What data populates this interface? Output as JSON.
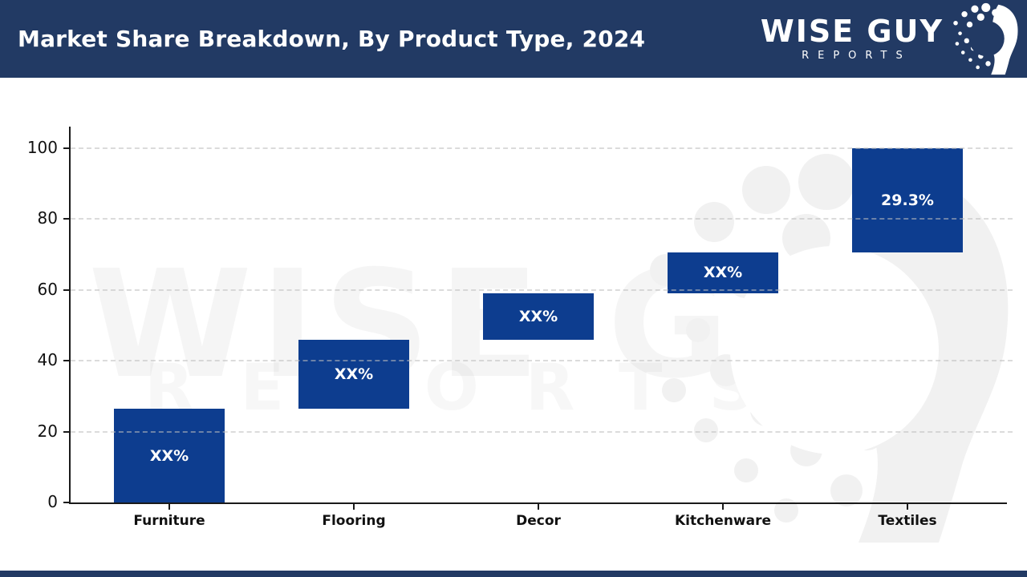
{
  "header": {
    "title": "Market Share Breakdown, By Product Type, 2024",
    "bg_color": "#223a64",
    "logo": {
      "line1": "WISE GUY",
      "line2": "REPORTS"
    }
  },
  "watermark": {
    "line1": "WISE GUY",
    "line2": "REPORTS"
  },
  "footer": {
    "bg_color": "#223a64"
  },
  "chart_data": {
    "type": "bar",
    "variant": "waterfall",
    "title": "Market Share Breakdown, By Product Type, 2024",
    "categories": [
      "Furniture",
      "Flooring",
      "Decor",
      "Kitchenware",
      "Textiles"
    ],
    "segments": [
      {
        "category": "Furniture",
        "start": 0,
        "end": 26.4,
        "value": 26.4,
        "label": "XX%"
      },
      {
        "category": "Flooring",
        "start": 26.4,
        "end": 45.9,
        "value": 19.5,
        "label": "XX%"
      },
      {
        "category": "Decor",
        "start": 45.9,
        "end": 59.1,
        "value": 13.2,
        "label": "XX%"
      },
      {
        "category": "Kitchenware",
        "start": 59.1,
        "end": 70.7,
        "value": 11.6,
        "label": "XX%"
      },
      {
        "category": "Textiles",
        "start": 70.7,
        "end": 100,
        "value": 29.3,
        "label": "29.3%"
      }
    ],
    "ylim": [
      0,
      100
    ],
    "yticks": [
      0,
      20,
      40,
      60,
      80,
      100
    ],
    "xlabel": "",
    "ylabel": "",
    "grid": "horizontal-dashed",
    "legend": "none",
    "bar_color": "#0d3d8f",
    "label_color": "#ffffff"
  }
}
